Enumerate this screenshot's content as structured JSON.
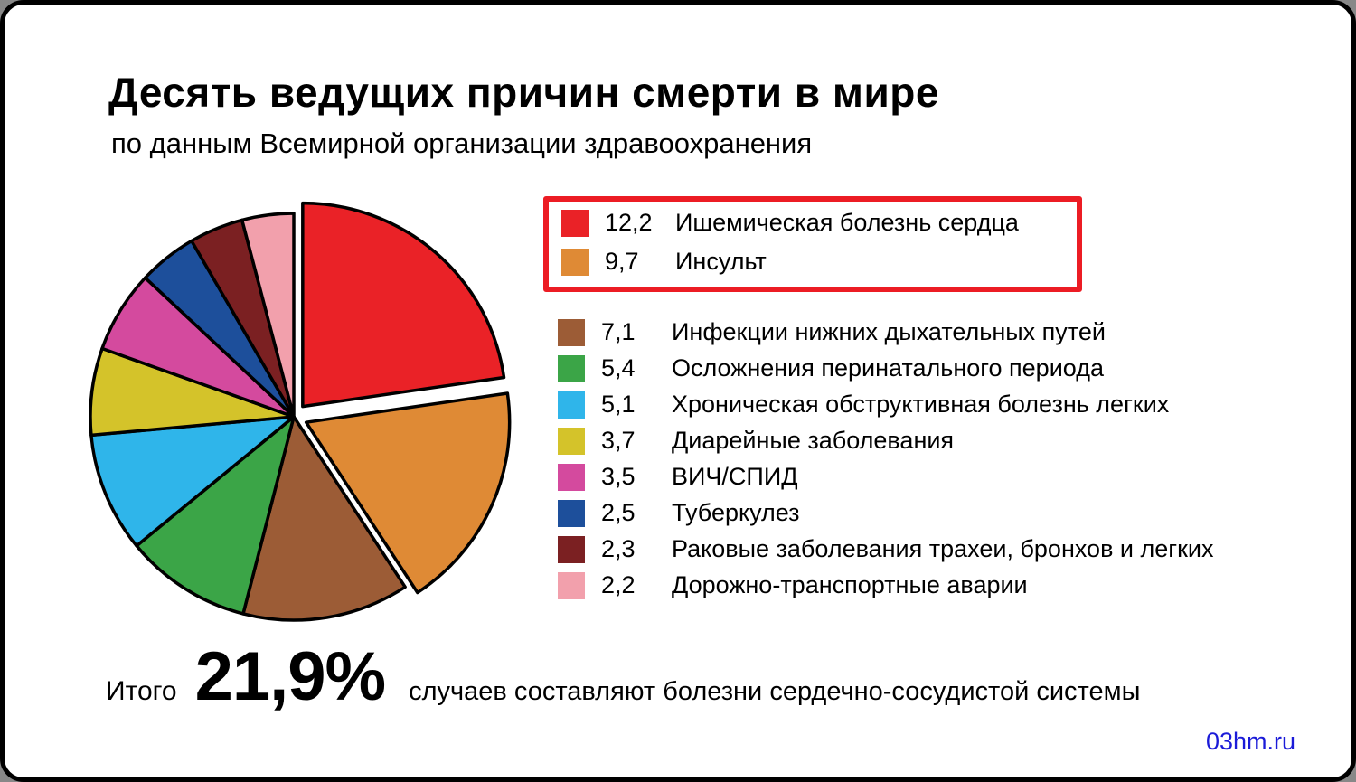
{
  "page": {
    "title": "Десять ведущих причин смерти в мире",
    "subtitle": "по данным Всемирной организации здравоохранения",
    "footer": {
      "prefix": "Итого",
      "percent": "21,9%",
      "suffix": "случаев составляют болезни сердечно-сосудистой системы"
    },
    "watermark": "03hm.ru"
  },
  "chart_data": {
    "type": "pie",
    "title": "Десять ведущих причин смерти в мире",
    "subtitle": "по данным Всемирной организации здравоохранения",
    "legend_position": "right",
    "highlight_box_color": "#ec1c24",
    "highlight_note": "первые две причины (сердечно-сосудистые) выделены красной рамкой",
    "total_of_highlighted": "21,9%",
    "slices": [
      {
        "label": "Ишемическая болезнь сердца",
        "value": 12.2,
        "value_text": "12,2",
        "color": "#ea2227",
        "exploded": true,
        "highlighted": true
      },
      {
        "label": "Инсульт",
        "value": 9.7,
        "value_text": "9,7",
        "color": "#df8a35",
        "exploded": true,
        "highlighted": true
      },
      {
        "label": "Инфекции нижних дыхательных путей",
        "value": 7.1,
        "value_text": "7,1",
        "color": "#9c5c36",
        "exploded": false,
        "highlighted": false
      },
      {
        "label": "Осложнения перинатального периода",
        "value": 5.4,
        "value_text": "5,4",
        "color": "#3ba547",
        "exploded": false,
        "highlighted": false
      },
      {
        "label": "Хроническая обструктивная болезнь легких",
        "value": 5.1,
        "value_text": "5,1",
        "color": "#2fb5ea",
        "exploded": false,
        "highlighted": false
      },
      {
        "label": "Диарейные заболевания",
        "value": 3.7,
        "value_text": "3,7",
        "color": "#d4c32a",
        "exploded": false,
        "highlighted": false
      },
      {
        "label": "ВИЧ/СПИД",
        "value": 3.5,
        "value_text": "3,5",
        "color": "#d44a9e",
        "exploded": false,
        "highlighted": false
      },
      {
        "label": "Туберкулез",
        "value": 2.5,
        "value_text": "2,5",
        "color": "#1d4f9b",
        "exploded": false,
        "highlighted": false
      },
      {
        "label": "Раковые заболевания трахеи, бронхов и легких",
        "value": 2.3,
        "value_text": "2,3",
        "color": "#7b2022",
        "exploded": false,
        "highlighted": false
      },
      {
        "label": "Дорожно-транспортные аварии",
        "value": 2.2,
        "value_text": "2,2",
        "color": "#f2a0ac",
        "exploded": false,
        "highlighted": false
      }
    ]
  }
}
